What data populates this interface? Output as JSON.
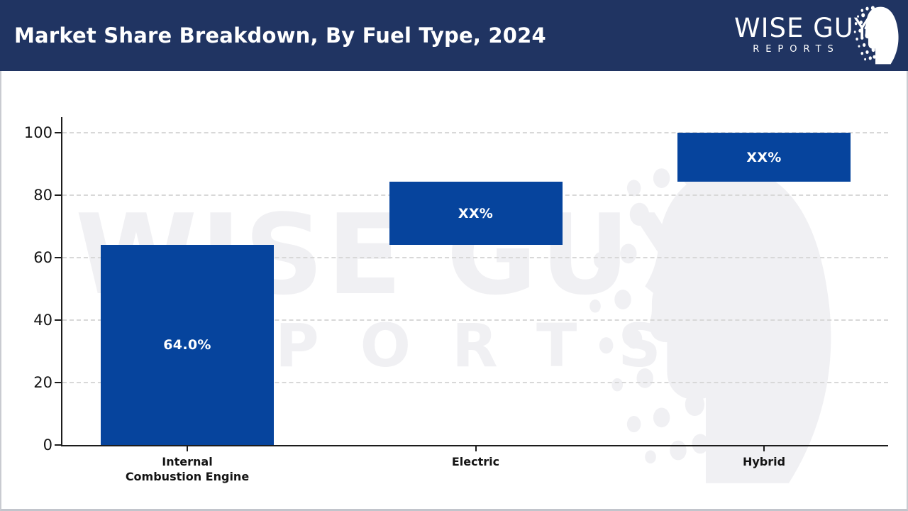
{
  "header": {
    "title": "Market Share Breakdown, By Fuel Type, 2024",
    "logo": {
      "line1": "WISE GUY",
      "line2": "REPORTS"
    }
  },
  "watermark": {
    "line1": "WISE GUY",
    "line2": "REPORTS"
  },
  "colors": {
    "header_bg": "#203462",
    "bar": "#06449d",
    "bar_label": "#ffffff",
    "grid": "#d8d8d8",
    "axis": "#1c1c1c",
    "watermark": "#f0f0f3"
  },
  "chart_data": {
    "type": "bar",
    "subtype": "floating-stacked-percentage",
    "title": "Market Share Breakdown, By Fuel Type, 2024",
    "categories": [
      "Internal Combustion Engine",
      "Electric",
      "Hybrid"
    ],
    "category_lines": [
      [
        "Internal",
        "Combustion Engine"
      ],
      [
        "Electric"
      ],
      [
        "Hybrid"
      ]
    ],
    "segments": [
      {
        "category": "Internal Combustion Engine",
        "start": 0,
        "end": 64,
        "label": "64.0%"
      },
      {
        "category": "Electric",
        "start": 64,
        "end": 84.3,
        "label": "XX%"
      },
      {
        "category": "Hybrid",
        "start": 84.3,
        "end": 100,
        "label": "XX%"
      }
    ],
    "yticks": [
      0,
      20,
      40,
      60,
      80,
      100
    ],
    "ylim": [
      0,
      100
    ],
    "xlabel": "",
    "ylabel": "",
    "grid": "dashed-horizontal",
    "legend": "none"
  }
}
